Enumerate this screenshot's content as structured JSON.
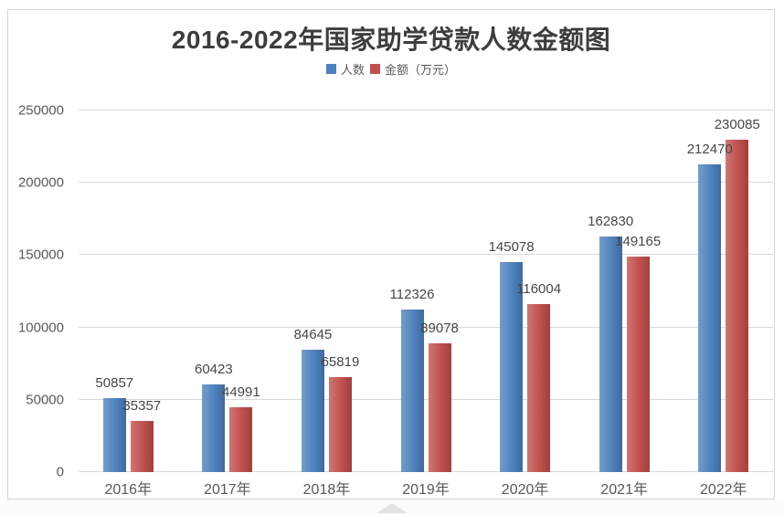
{
  "chart_data": {
    "type": "bar",
    "title": "2016-2022年国家助学贷款人数金额图",
    "categories": [
      "2016年",
      "2017年",
      "2018年",
      "2019年",
      "2020年",
      "2021年",
      "2022年"
    ],
    "series": [
      {
        "name": "人数",
        "color": "#4f81bd",
        "values": [
          50857,
          60423,
          84645,
          112326,
          145078,
          162830,
          212470
        ]
      },
      {
        "name": "金额（万元）",
        "color": "#c0504d",
        "values": [
          35357,
          44991,
          65819,
          89078,
          116004,
          149165,
          230085
        ]
      }
    ],
    "xlabel": "",
    "ylabel": "",
    "ylim": [
      0,
      250000
    ],
    "yticks": [
      0,
      50000,
      100000,
      150000,
      200000,
      250000
    ],
    "grid": true,
    "gridline_color": "#d9d9d9",
    "legend_position": "top",
    "data_labels": true
  }
}
